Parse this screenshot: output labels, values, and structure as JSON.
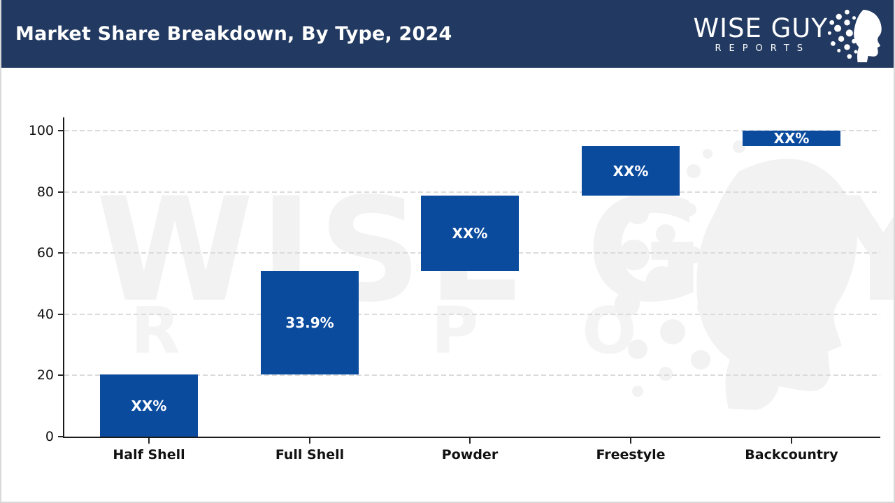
{
  "header": {
    "title": "Market Share Breakdown, By Type, 2024",
    "bg_color": "#223A61",
    "logo": {
      "line1": "WISE GUY",
      "line2": "REPORTS"
    }
  },
  "watermark": {
    "line1": "WISE GUY",
    "line2": "R E P O R T S"
  },
  "chart_data": {
    "type": "bar",
    "subtype": "waterfall",
    "title": "Market Share Breakdown, By Type, 2024",
    "categories": [
      "Half Shell",
      "Full Shell",
      "Powder",
      "Freestyle",
      "Backcountry"
    ],
    "bars": [
      {
        "category": "Half Shell",
        "label": "XX%",
        "start": 0,
        "end": 20.3
      },
      {
        "category": "Full Shell",
        "label": "33.9%",
        "start": 20.3,
        "end": 54.2
      },
      {
        "category": "Powder",
        "label": "XX%",
        "start": 54.2,
        "end": 78.7
      },
      {
        "category": "Freestyle",
        "label": "XX%",
        "start": 78.7,
        "end": 95.0
      },
      {
        "category": "Backcountry",
        "label": "XX%",
        "start": 95.0,
        "end": 100
      }
    ],
    "bar_color": "#0A4B9E",
    "xlabel": "",
    "ylabel": "",
    "y_ticks": [
      0,
      20,
      40,
      60,
      80,
      100
    ],
    "ylim": [
      0,
      104
    ],
    "legend": "none",
    "grid": "horizontal-dashed"
  }
}
